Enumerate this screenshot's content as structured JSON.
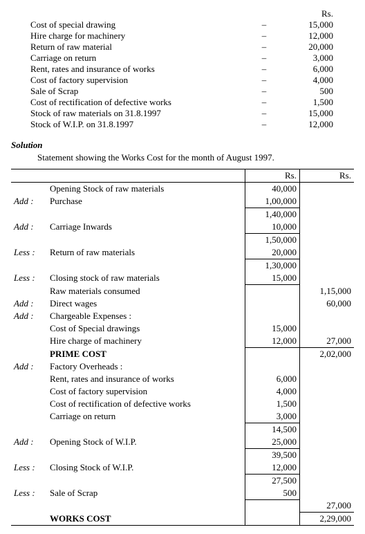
{
  "top": {
    "rs_label": "Rs.",
    "items": [
      {
        "desc": "Cost of special drawing",
        "amt": "15,000"
      },
      {
        "desc": "Hire charge for machinery",
        "amt": "12,000"
      },
      {
        "desc": "Return of raw material",
        "amt": "20,000"
      },
      {
        "desc": "Carriage on return",
        "amt": "3,000"
      },
      {
        "desc": "Rent, rates and insurance of works",
        "amt": "6,000"
      },
      {
        "desc": "Cost of factory supervision",
        "amt": "4,000"
      },
      {
        "desc": "Sale of Scrap",
        "amt": "500"
      },
      {
        "desc": "Cost of rectification of defective works",
        "amt": "1,500"
      },
      {
        "desc": "Stock of raw materials on 31.8.1997",
        "amt": "15,000"
      },
      {
        "desc": "Stock of W.I.P. on 31.8.1997",
        "amt": "12,000"
      }
    ]
  },
  "solution": {
    "title": "Solution",
    "subtitle": "Statement showing the Works Cost for the month of August 1997.",
    "rs_label": "Rs.",
    "rows": [
      {
        "op": "",
        "desc": "Opening Stock of raw materials",
        "c1": "40,000",
        "c2": ""
      },
      {
        "op": "Add :",
        "desc": "Purchase",
        "c1": "1,00,000",
        "c2": "",
        "c1_bb": true
      },
      {
        "op": "",
        "desc": "",
        "c1": "1,40,000",
        "c2": ""
      },
      {
        "op": "Add :",
        "desc": "Carriage Inwards",
        "c1": "10,000",
        "c2": "",
        "c1_bb": true
      },
      {
        "op": "",
        "desc": "",
        "c1": "1,50,000",
        "c2": ""
      },
      {
        "op": "Less :",
        "desc": "Return of raw materials",
        "c1": "20,000",
        "c2": "",
        "c1_bb": true
      },
      {
        "op": "",
        "desc": "",
        "c1": "1,30,000",
        "c2": ""
      },
      {
        "op": "Less :",
        "desc": "Closing stock of raw materials",
        "c1": "15,000",
        "c2": "",
        "c1_bb": true
      },
      {
        "op": "",
        "desc": "Raw materials consumed",
        "c1": "",
        "c2": "1,15,000"
      },
      {
        "op": "Add :",
        "desc": "Direct wages",
        "c1": "",
        "c2": "60,000"
      },
      {
        "op": "Add :",
        "desc": "Chargeable Expenses :",
        "c1": "",
        "c2": ""
      },
      {
        "op": "",
        "desc": "Cost of Special drawings",
        "c1": "15,000",
        "c2": ""
      },
      {
        "op": "",
        "desc": "Hire charge of machinery",
        "c1": "12,000",
        "c2": "27,000",
        "c1_bb": true,
        "c2_bb": true
      },
      {
        "op": "",
        "desc": "PRIME COST",
        "c1": "",
        "c2": "2,02,000",
        "bold": true
      },
      {
        "op": "Add :",
        "desc": "Factory Overheads :",
        "c1": "",
        "c2": ""
      },
      {
        "op": "",
        "desc": "Rent, rates and insurance of works",
        "c1": "6,000",
        "c2": ""
      },
      {
        "op": "",
        "desc": "Cost of factory supervision",
        "c1": "4,000",
        "c2": ""
      },
      {
        "op": "",
        "desc": "Cost of rectification of defective works",
        "c1": "1,500",
        "c2": ""
      },
      {
        "op": "",
        "desc": "Carriage on return",
        "c1": "3,000",
        "c2": "",
        "c1_bb": true
      },
      {
        "op": "",
        "desc": "",
        "c1": "14,500",
        "c2": ""
      },
      {
        "op": "Add :",
        "desc": "Opening Stock of W.I.P.",
        "c1": "25,000",
        "c2": "",
        "c1_bb": true
      },
      {
        "op": "",
        "desc": "",
        "c1": "39,500",
        "c2": ""
      },
      {
        "op": "Less :",
        "desc": "Closing Stock of W.I.P.",
        "c1": "12,000",
        "c2": "",
        "c1_bb": true
      },
      {
        "op": "",
        "desc": "",
        "c1": "27,500",
        "c2": ""
      },
      {
        "op": "Less :",
        "desc": "Sale of Scrap",
        "c1": "500",
        "c2": "",
        "c1_bb": true
      },
      {
        "op": "",
        "desc": "",
        "c1": "",
        "c2": "27,000",
        "c2_bb": true
      },
      {
        "op": "",
        "desc": "WORKS COST",
        "c1": "",
        "c2": "2,29,000",
        "bold": true,
        "final": true
      }
    ]
  }
}
